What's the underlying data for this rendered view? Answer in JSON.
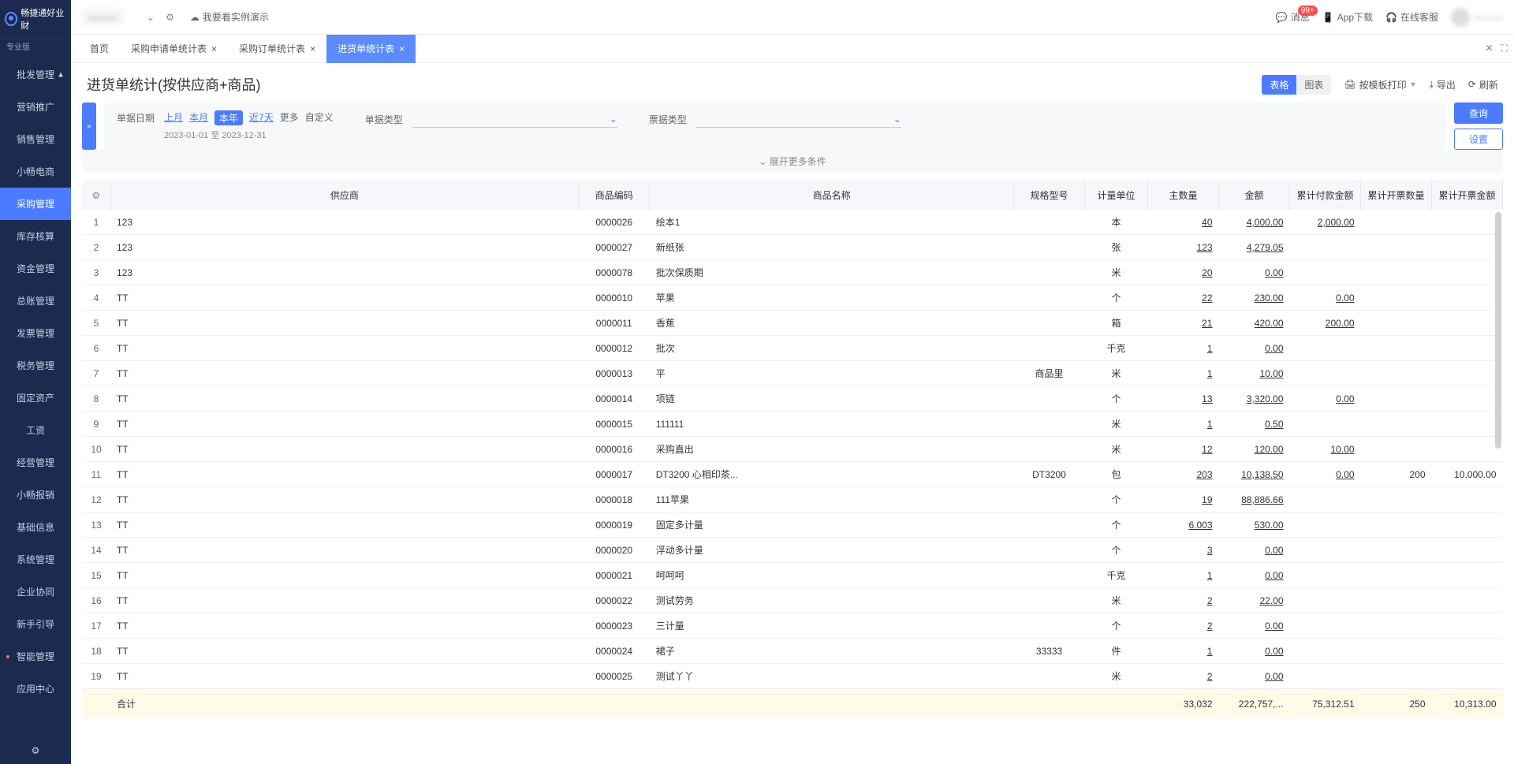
{
  "logo_text": "畅捷通好业财",
  "edition": "专业版",
  "sidebar": {
    "items": [
      {
        "label": "批发管理",
        "arrow": "▲"
      },
      {
        "label": "营销推广"
      },
      {
        "label": "销售管理"
      },
      {
        "label": "小畅电商"
      },
      {
        "label": "采购管理",
        "active": true
      },
      {
        "label": "库存核算"
      },
      {
        "label": "资金管理"
      },
      {
        "label": "总账管理"
      },
      {
        "label": "发票管理"
      },
      {
        "label": "税务管理"
      },
      {
        "label": "固定资产"
      },
      {
        "label": "工资"
      },
      {
        "label": "经营管理"
      },
      {
        "label": "小畅报销"
      },
      {
        "label": "基础信息"
      },
      {
        "label": "系统管理"
      },
      {
        "label": "企业协同"
      },
      {
        "label": "新手引导"
      },
      {
        "label": "智能管理",
        "dot": true
      },
      {
        "label": "应用中心"
      }
    ]
  },
  "topbar": {
    "org": "———",
    "demo": "我要看实例演示",
    "msg": "消息",
    "msg_badge": "99+",
    "download": "App下载",
    "service": "在线客服",
    "user": "———"
  },
  "tabs": [
    {
      "label": "首页"
    },
    {
      "label": "采购申请单统计表",
      "closable": true
    },
    {
      "label": "采购订单统计表",
      "closable": true
    },
    {
      "label": "进货单统计表",
      "closable": true,
      "active": true
    }
  ],
  "page_title": "进货单统计(按供应商+商品)",
  "view_toggle": {
    "table": "表格",
    "chart": "图表"
  },
  "toolbar": {
    "print": "按模板打印",
    "export": "导出",
    "refresh": "刷新"
  },
  "filter": {
    "date_label": "单据日期",
    "presets": [
      "上月",
      "本月",
      "本年",
      "近7天",
      "更多",
      "自定义"
    ],
    "active_preset": "本年",
    "date_range": "2023-01-01 至 2023-12-31",
    "bill_type_label": "单据类型",
    "invoice_type_label": "票据类型",
    "query_btn": "查询",
    "setting_btn": "设置",
    "expand_more": "展开更多条件"
  },
  "table": {
    "headers": [
      "供应商",
      "商品编码",
      "商品名称",
      "规格型号",
      "计量单位",
      "主数量",
      "金额",
      "累计付款金额",
      "累计开票数量",
      "累计开票金额"
    ],
    "rows": [
      {
        "idx": "1",
        "supplier": "123",
        "code": "0000026",
        "name": "绘本1",
        "spec": "",
        "unit": "本",
        "qty": "40",
        "amt": "4,000.00",
        "paid": "2,000.00",
        "invq": "",
        "inva": ""
      },
      {
        "idx": "2",
        "supplier": "123",
        "code": "0000027",
        "name": "新纸张",
        "spec": "",
        "unit": "张",
        "qty": "123",
        "amt": "4,279.05",
        "paid": "",
        "invq": "",
        "inva": ""
      },
      {
        "idx": "3",
        "supplier": "123",
        "code": "0000078",
        "name": "批次保质期",
        "spec": "",
        "unit": "米",
        "qty": "20",
        "amt": "0.00",
        "paid": "",
        "invq": "",
        "inva": ""
      },
      {
        "idx": "4",
        "supplier": "TT",
        "code": "0000010",
        "name": "苹果",
        "spec": "",
        "unit": "个",
        "qty": "22",
        "amt": "230.00",
        "paid": "0.00",
        "invq": "",
        "inva": ""
      },
      {
        "idx": "5",
        "supplier": "TT",
        "code": "0000011",
        "name": "香蕉",
        "spec": "",
        "unit": "箱",
        "qty": "21",
        "amt": "420.00",
        "paid": "200.00",
        "invq": "",
        "inva": ""
      },
      {
        "idx": "6",
        "supplier": "TT",
        "code": "0000012",
        "name": "批次",
        "spec": "",
        "unit": "千克",
        "qty": "1",
        "amt": "0.00",
        "paid": "",
        "invq": "",
        "inva": ""
      },
      {
        "idx": "7",
        "supplier": "TT",
        "code": "0000013",
        "name": "平",
        "spec": "商品里",
        "unit": "米",
        "qty": "1",
        "amt": "10.00",
        "paid": "",
        "invq": "",
        "inva": ""
      },
      {
        "idx": "8",
        "supplier": "TT",
        "code": "0000014",
        "name": "项链",
        "spec": "",
        "unit": "个",
        "qty": "13",
        "amt": "3,320.00",
        "paid": "0.00",
        "invq": "",
        "inva": ""
      },
      {
        "idx": "9",
        "supplier": "TT",
        "code": "0000015",
        "name": "111111",
        "spec": "",
        "unit": "米",
        "qty": "1",
        "amt": "0.50",
        "paid": "",
        "invq": "",
        "inva": ""
      },
      {
        "idx": "10",
        "supplier": "TT",
        "code": "0000016",
        "name": "采购直出",
        "spec": "",
        "unit": "米",
        "qty": "12",
        "amt": "120.00",
        "paid": "10.00",
        "invq": "",
        "inva": ""
      },
      {
        "idx": "11",
        "supplier": "TT",
        "code": "0000017",
        "name": "DT3200 心相印茶...",
        "spec": "DT3200",
        "unit": "包",
        "qty": "203",
        "amt": "10,138.50",
        "paid": "0.00",
        "invq": "200",
        "inva": "10,000.00"
      },
      {
        "idx": "12",
        "supplier": "TT",
        "code": "0000018",
        "name": "111苹果",
        "spec": "",
        "unit": "个",
        "qty": "19",
        "amt": "88,886.66",
        "paid": "",
        "invq": "",
        "inva": ""
      },
      {
        "idx": "13",
        "supplier": "TT",
        "code": "0000019",
        "name": "固定多计量",
        "spec": "",
        "unit": "个",
        "qty": "6.003",
        "amt": "530.00",
        "paid": "",
        "invq": "",
        "inva": ""
      },
      {
        "idx": "14",
        "supplier": "TT",
        "code": "0000020",
        "name": "浮动多计量",
        "spec": "",
        "unit": "个",
        "qty": "3",
        "amt": "0.00",
        "paid": "",
        "invq": "",
        "inva": ""
      },
      {
        "idx": "15",
        "supplier": "TT",
        "code": "0000021",
        "name": "呵呵呵",
        "spec": "",
        "unit": "千克",
        "qty": "1",
        "amt": "0.00",
        "paid": "",
        "invq": "",
        "inva": ""
      },
      {
        "idx": "16",
        "supplier": "TT",
        "code": "0000022",
        "name": "测试劳务",
        "spec": "",
        "unit": "米",
        "qty": "2",
        "amt": "22.00",
        "paid": "",
        "invq": "",
        "inva": ""
      },
      {
        "idx": "17",
        "supplier": "TT",
        "code": "0000023",
        "name": "三计量",
        "spec": "",
        "unit": "个",
        "qty": "2",
        "amt": "0.00",
        "paid": "",
        "invq": "",
        "inva": ""
      },
      {
        "idx": "18",
        "supplier": "TT",
        "code": "0000024",
        "name": "裙子",
        "spec": "33333",
        "unit": "件",
        "qty": "1",
        "amt": "0.00",
        "paid": "",
        "invq": "",
        "inva": ""
      },
      {
        "idx": "19",
        "supplier": "TT",
        "code": "0000025",
        "name": "测试丫丫",
        "spec": "",
        "unit": "米",
        "qty": "2",
        "amt": "0.00",
        "paid": "",
        "invq": "",
        "inva": ""
      }
    ],
    "total": {
      "label": "合计",
      "qty": "33,032",
      "amt": "222,757,...",
      "paid": "75,312.51",
      "invq": "250",
      "inva": "10,313.00"
    }
  }
}
